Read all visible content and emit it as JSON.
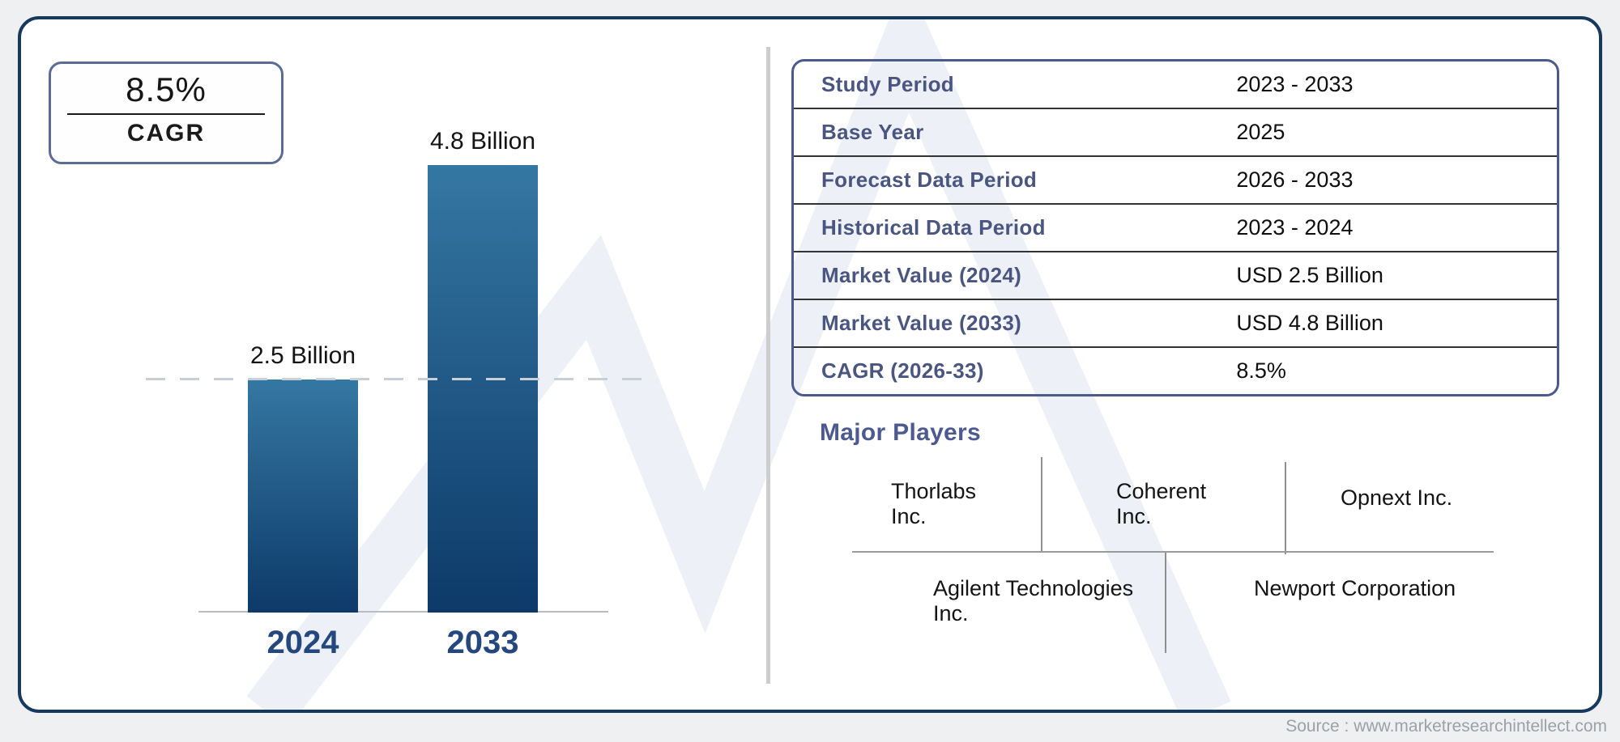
{
  "cagr_box": {
    "value": "8.5%",
    "label": "CAGR"
  },
  "chart_data": {
    "type": "bar",
    "title": "",
    "categories": [
      "2024",
      "2033"
    ],
    "values": [
      2.5,
      4.8
    ],
    "unit": "USD Billion",
    "value_labels": [
      "2.5 Billion",
      "4.8 Billion"
    ],
    "reference_line": 2.5,
    "ylim": [
      0,
      5.2
    ],
    "grid": "off",
    "bar_color_top": "#3577a3",
    "bar_color_bottom": "#0d3a68"
  },
  "info_table": {
    "rows": [
      {
        "label": "Study Period",
        "value": "2023 - 2033"
      },
      {
        "label": "Base Year",
        "value": "2025"
      },
      {
        "label": "Forecast Data Period",
        "value": "2026 - 2033"
      },
      {
        "label": "Historical Data Period",
        "value": "2023 - 2024"
      },
      {
        "label": "Market Value (2024)",
        "value": "USD 2.5 Billion"
      },
      {
        "label": "Market Value (2033)",
        "value": "USD 4.8 Billion"
      },
      {
        "label": "CAGR (2026-33)",
        "value": "8.5%"
      }
    ]
  },
  "major_players": {
    "title": "Major Players",
    "row1": [
      "Thorlabs Inc.",
      "Coherent Inc.",
      "Opnext Inc."
    ],
    "row2": [
      "Agilent Technologies Inc.",
      "Newport Corporation"
    ]
  },
  "footer": {
    "source": "Source : www.marketresearchintellect.com"
  },
  "colors": {
    "outer_border": "#17395d",
    "accent_slate": "#4d5a90",
    "year_label": "#24477e",
    "watermark": "#edf1f7",
    "divider_gray": "#cdcdcd"
  }
}
